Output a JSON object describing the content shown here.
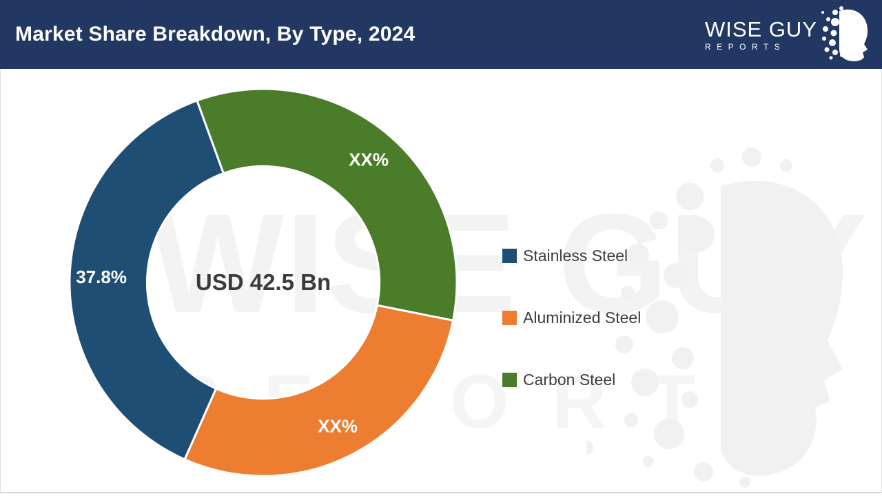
{
  "header": {
    "title": "Market Share Breakdown, By Type, 2024",
    "logo": {
      "line1": "WISE GUY",
      "line2": "REPORTS"
    }
  },
  "watermark": {
    "line1": "WISE GUY",
    "line2": "REPORTS"
  },
  "chart_data": {
    "type": "donut",
    "title": "Market Share Breakdown, By Type, 2024",
    "center_label": "USD 42.5 Bn",
    "units": "percent share of USD 42.5 Bn market",
    "start_angle_deg": -20,
    "direction": "ccw",
    "inner_radius_ratio": 0.6,
    "legend_position": "right",
    "segments": [
      {
        "label": "Stainless Steel",
        "value": 37.8,
        "display": "37.8%",
        "color": "#1F4E74"
      },
      {
        "label": "Aluminized Steel",
        "value": 28.5,
        "display": "XX%",
        "color": "#ED7D31"
      },
      {
        "label": "Carbon Steel",
        "value": 33.7,
        "display": "XX%",
        "color": "#4A7C29"
      }
    ],
    "colors": {
      "header_navy": "#223863",
      "text_dark": "#3B3B3B"
    }
  }
}
